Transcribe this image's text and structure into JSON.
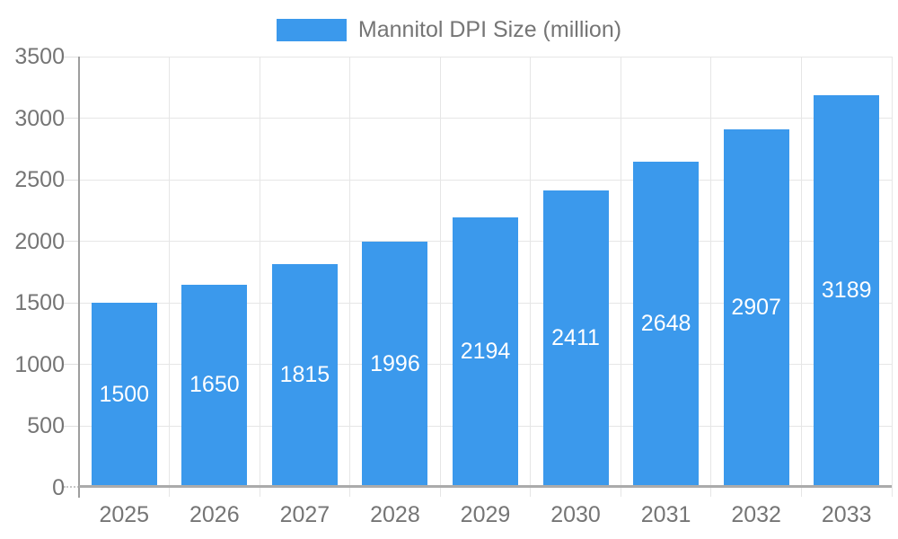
{
  "legend": {
    "label": "Mannitol DPI Size (million)"
  },
  "chart_data": {
    "type": "bar",
    "title": "Mannitol DPI Size (million)",
    "categories": [
      "2025",
      "2026",
      "2027",
      "2028",
      "2029",
      "2030",
      "2031",
      "2032",
      "2033"
    ],
    "series": [
      {
        "name": "Mannitol DPI Size (million)",
        "values": [
          1500,
          1650,
          1815,
          1996,
          2194,
          2411,
          2648,
          2907,
          3189
        ]
      }
    ],
    "value_labels": [
      "1500",
      "1650",
      "1815",
      "1996",
      "2194",
      "2411",
      "2648",
      "2907",
      "3189"
    ],
    "xlabel": "",
    "ylabel": "",
    "ylim": [
      0,
      3500
    ],
    "ytick_step": 500,
    "ytick_labels": [
      "0",
      "500",
      "1000",
      "1500",
      "2000",
      "2500",
      "3000",
      "3500"
    ],
    "grid": true,
    "legend_position": "top",
    "colors": {
      "bar": "#3B99EC",
      "bar_value_text": "#FFFFFF",
      "axis_text": "#757575",
      "legend_text": "#757575",
      "gridline": "#E6E6E6",
      "tick": "#DFDFDF",
      "y_axis_line": "#9E9E9E",
      "baseline": "#ABABAB",
      "background": "#FFFFFF"
    }
  }
}
